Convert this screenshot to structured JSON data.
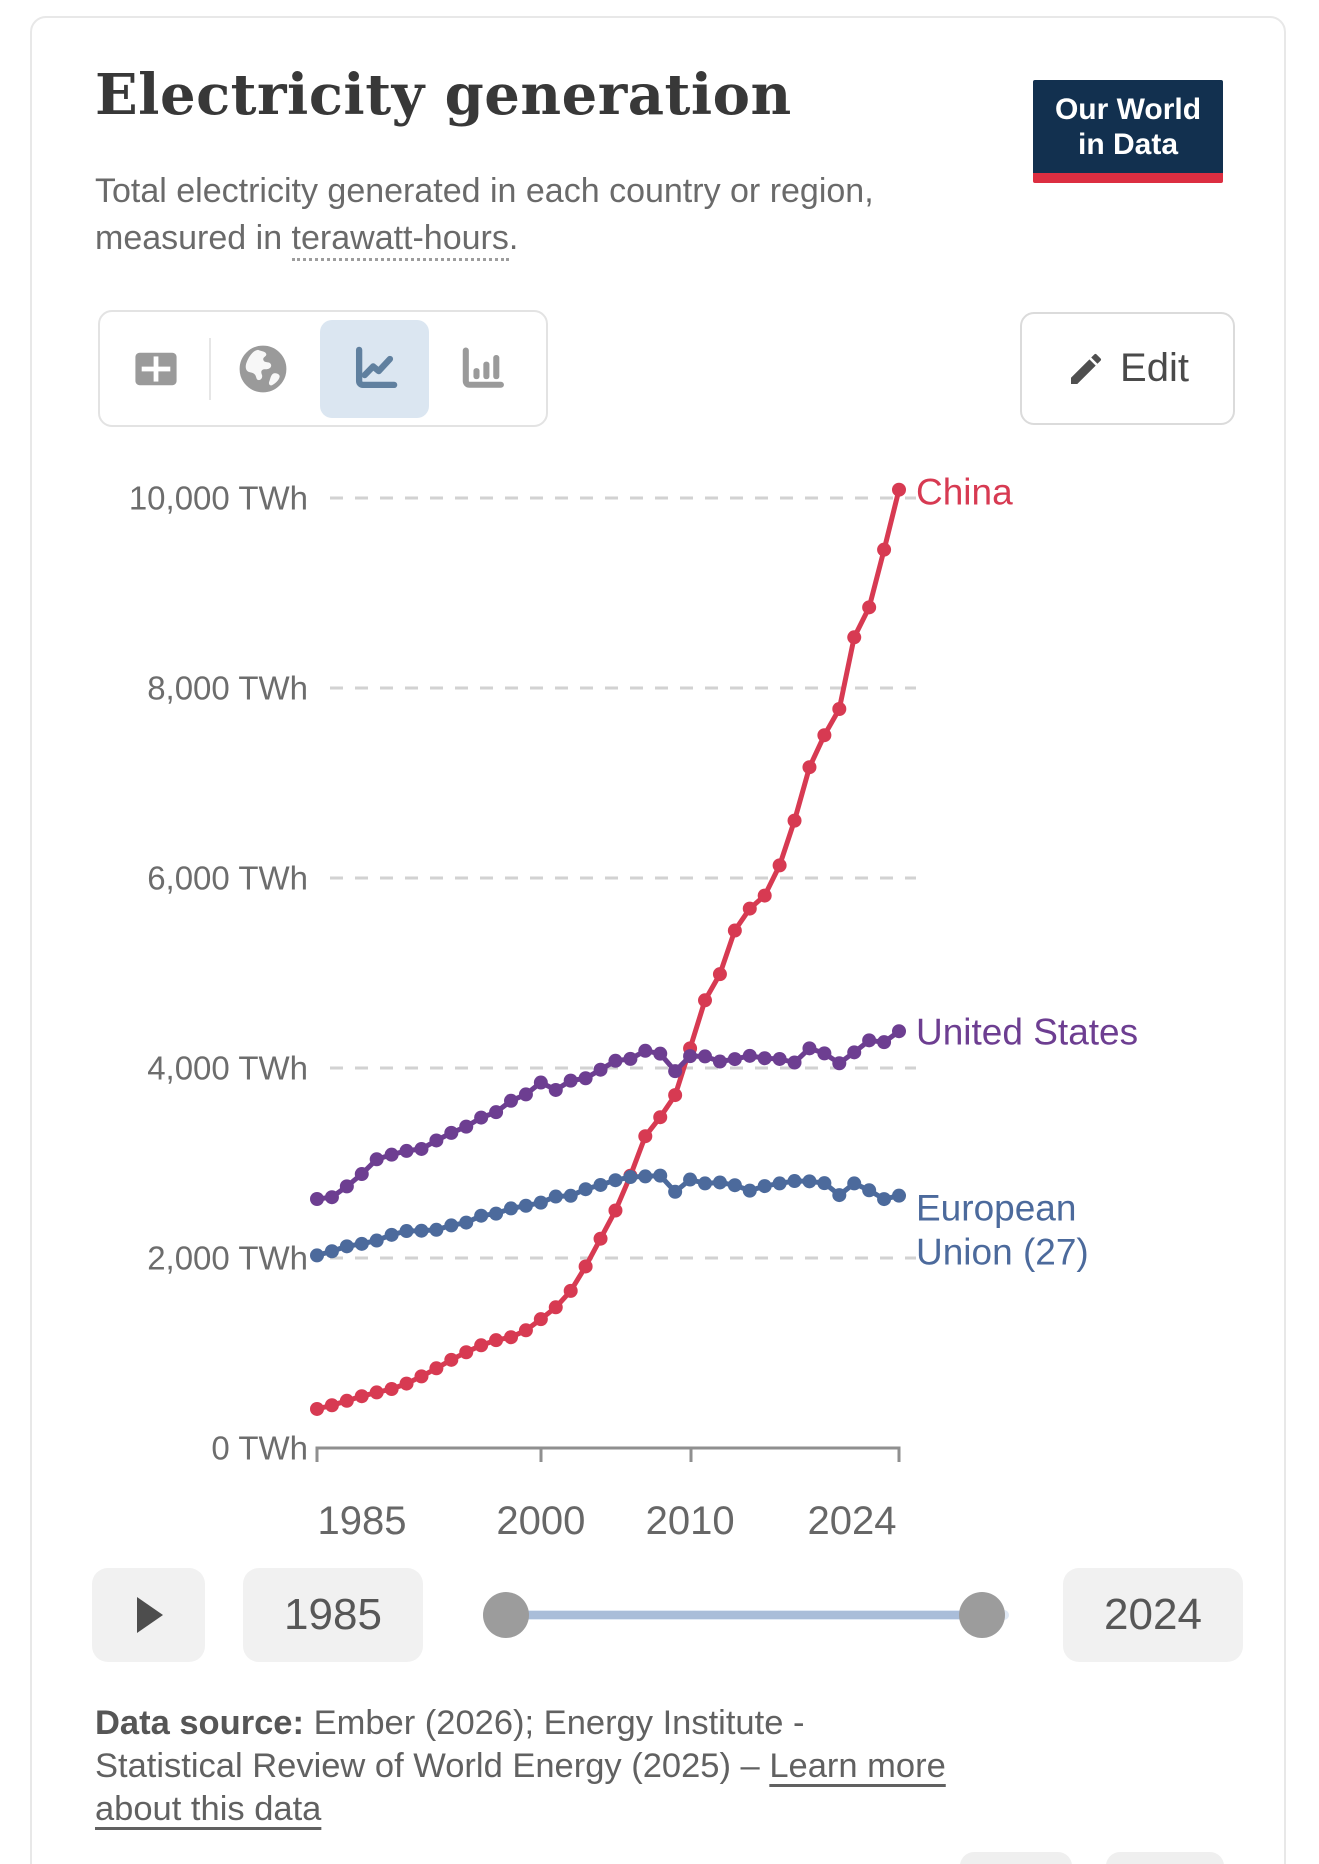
{
  "header": {
    "title": "Electricity generation",
    "subtitle_prefix": "Total electricity generated in each country or region, measured in ",
    "subtitle_term": "terawatt-hours",
    "subtitle_suffix": ".",
    "logo_line1": "Our World",
    "logo_line2": "in Data",
    "logo_navy": "#12304f",
    "logo_red": "#dc2e41"
  },
  "toolbar": {
    "icons": [
      "table-icon",
      "globe-icon",
      "line-chart-icon",
      "bar-chart-icon"
    ],
    "selected_view": "line-chart",
    "selected_bg": "#dbe6f1",
    "edit_label": "Edit"
  },
  "chart_data": {
    "type": "line",
    "title": "Electricity generation",
    "unit": "TWh",
    "x": [
      1985,
      1986,
      1987,
      1988,
      1989,
      1990,
      1991,
      1992,
      1993,
      1994,
      1995,
      1996,
      1997,
      1998,
      1999,
      2000,
      2001,
      2002,
      2003,
      2004,
      2005,
      2006,
      2007,
      2008,
      2009,
      2010,
      2011,
      2012,
      2013,
      2014,
      2015,
      2016,
      2017,
      2018,
      2019,
      2020,
      2021,
      2022,
      2023,
      2024
    ],
    "series": [
      {
        "name": "China",
        "color": "#d73a52",
        "label_lines": [
          "China"
        ],
        "label_ys": [
          492
        ],
        "values": [
          411,
          450,
          497,
          545,
          585,
          621,
          678,
          754,
          839,
          928,
          1008,
          1081,
          1135,
          1166,
          1239,
          1356,
          1481,
          1654,
          1911,
          2203,
          2500,
          2866,
          3282,
          3482,
          3715,
          4207,
          4713,
          4988,
          5447,
          5678,
          5815,
          6133,
          6604,
          7166,
          7503,
          7779,
          8534,
          8849,
          9456,
          10087
        ]
      },
      {
        "name": "United States",
        "color": "#6d3e91",
        "label_lines": [
          "United States"
        ],
        "label_ys": [
          1032
        ],
        "values": [
          2621,
          2640,
          2754,
          2884,
          3039,
          3088,
          3127,
          3148,
          3237,
          3317,
          3383,
          3478,
          3535,
          3655,
          3722,
          3847,
          3769,
          3867,
          3892,
          3982,
          4076,
          4096,
          4181,
          4151,
          3967,
          4125,
          4122,
          4068,
          4094,
          4128,
          4103,
          4095,
          4058,
          4207,
          4154,
          4050,
          4165,
          4291,
          4272,
          4387
        ]
      },
      {
        "name": "European Union (27)",
        "color": "#4c6a9c",
        "label_lines": [
          "European",
          "Union (27)"
        ],
        "label_ys": [
          1208,
          1252
        ],
        "values": [
          2027,
          2071,
          2123,
          2149,
          2184,
          2244,
          2284,
          2287,
          2297,
          2343,
          2373,
          2445,
          2467,
          2522,
          2550,
          2583,
          2647,
          2655,
          2724,
          2769,
          2819,
          2852,
          2859,
          2867,
          2697,
          2826,
          2785,
          2795,
          2766,
          2709,
          2757,
          2785,
          2810,
          2807,
          2788,
          2662,
          2785,
          2713,
          2620,
          2656
        ]
      }
    ],
    "ylim": [
      0,
      10000
    ],
    "yticks": [
      {
        "value": 0,
        "label": "0 TWh"
      },
      {
        "value": 2000,
        "label": "2,000 TWh"
      },
      {
        "value": 4000,
        "label": "4,000 TWh"
      },
      {
        "value": 6000,
        "label": "6,000 TWh"
      },
      {
        "value": 8000,
        "label": "8,000 TWh"
      },
      {
        "value": 10000,
        "label": "10,000 TWh"
      }
    ],
    "xticks": [
      1985,
      2000,
      2010,
      2024
    ],
    "grid": "dashed-horizontal",
    "legend_position": "end-of-line-labels",
    "colors": {
      "gridline": "#d2d2d2",
      "axis": "#8f8f8f",
      "tick_text": "#6d6d6d",
      "xtick_text": "#676767"
    }
  },
  "timeline": {
    "play_icon": "play-icon",
    "start_year": "1985",
    "end_year": "2024"
  },
  "footer": {
    "source_label": "Data source:",
    "source_line1": " Ember (2026); Energy Institute -",
    "source_line2": "Statistical Review of World Energy (2025) – ",
    "link_line1": "Learn more",
    "link_line2": "about this data"
  }
}
